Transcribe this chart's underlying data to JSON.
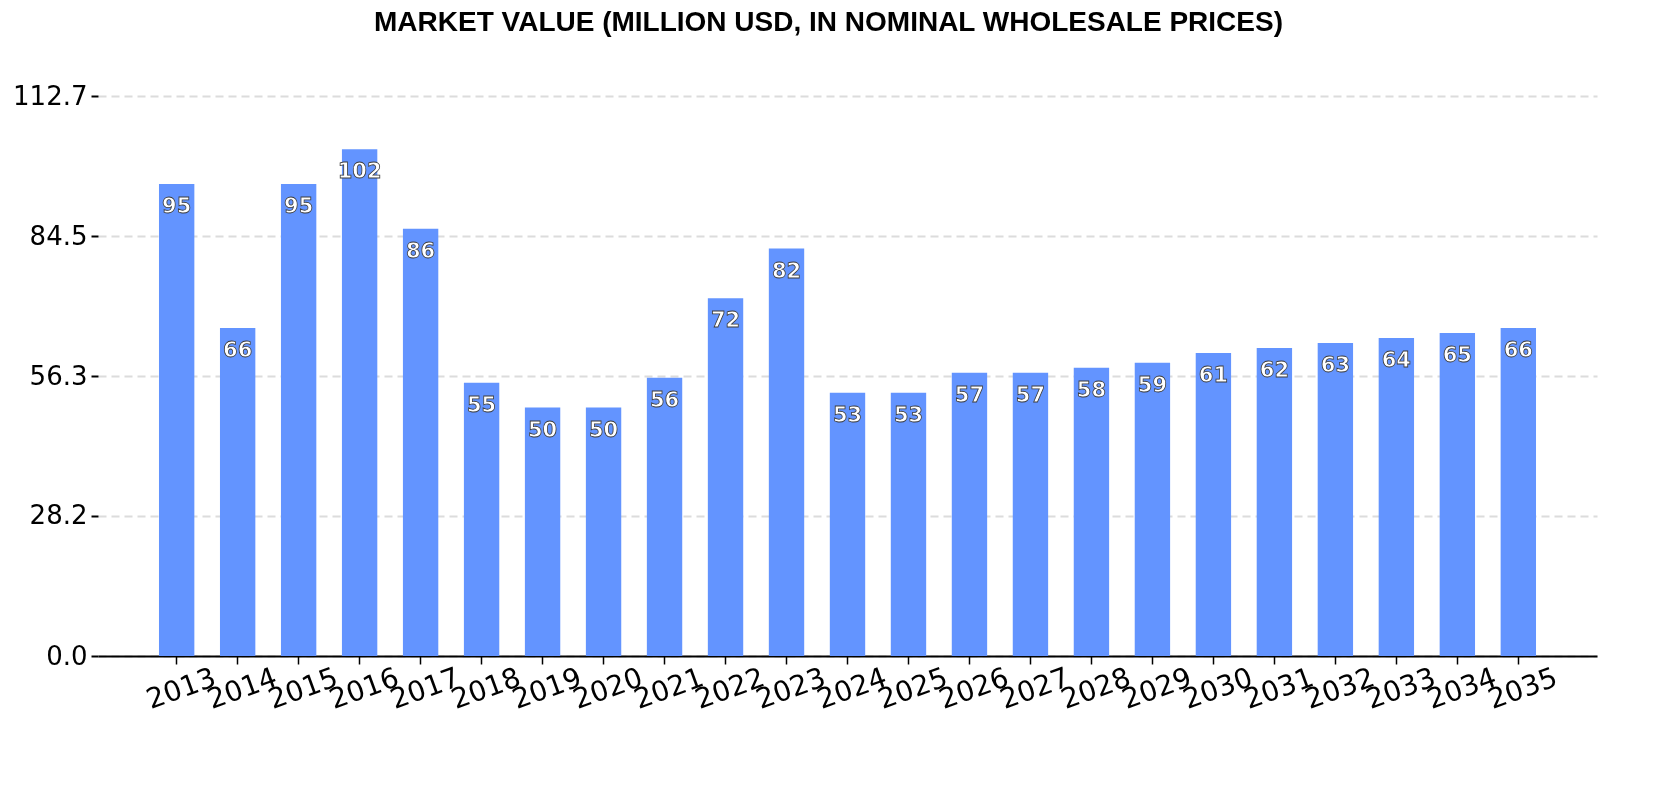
{
  "chart_data": {
    "type": "bar",
    "title": "MARKET VALUE (MILLION USD, IN NOMINAL WHOLESALE PRICES)",
    "categories": [
      "2013",
      "2014",
      "2015",
      "2016",
      "2017",
      "2018",
      "2019",
      "2020",
      "2021",
      "2022",
      "2023",
      "2024",
      "2025",
      "2026",
      "2027",
      "2028",
      "2029",
      "2030",
      "2031",
      "2032",
      "2033",
      "2034",
      "2035"
    ],
    "values": [
      95,
      66,
      95,
      102,
      86,
      55,
      50,
      50,
      56,
      72,
      82,
      53,
      53,
      57,
      57,
      58,
      59,
      61,
      62,
      63,
      64,
      65,
      66
    ],
    "color": "#6394ff",
    "ylim": [
      0,
      112.7
    ],
    "yticks": [
      {
        "value": 0,
        "label": "0.0"
      },
      28.2,
      56.3,
      84.5,
      112.7
    ],
    "grid": "y",
    "data_labels": true
  }
}
